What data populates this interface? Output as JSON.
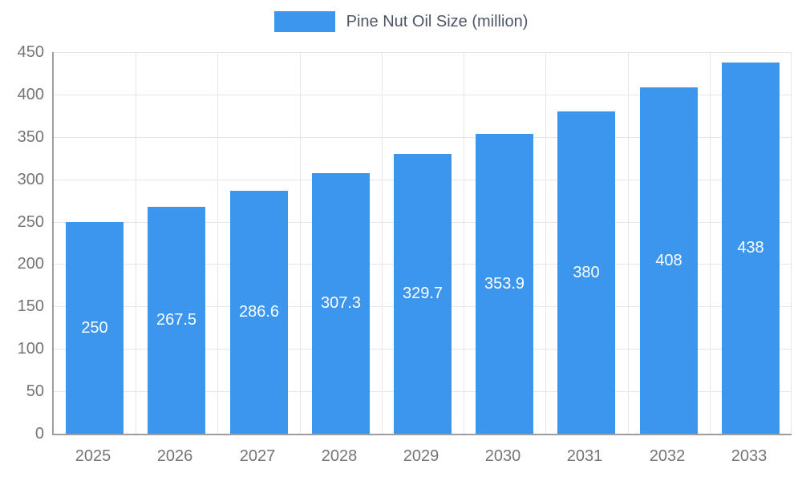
{
  "chart_data": {
    "type": "bar",
    "title": "",
    "legend": {
      "label": "Pine Nut Oil Size (million)",
      "position": "top"
    },
    "categories": [
      "2025",
      "2026",
      "2027",
      "2028",
      "2029",
      "2030",
      "2031",
      "2032",
      "2033"
    ],
    "series": [
      {
        "name": "Pine Nut Oil Size (million)",
        "values": [
          250,
          267.5,
          286.6,
          307.3,
          329.7,
          353.9,
          380,
          408,
          438
        ]
      }
    ],
    "value_labels": [
      "250",
      "267.5",
      "286.6",
      "307.3",
      "329.7",
      "353.9",
      "380",
      "408",
      "438"
    ],
    "xlabel": "",
    "ylabel": "",
    "ylim": [
      0,
      450
    ],
    "ytick_step": 50,
    "grid": true,
    "colors": {
      "bar": "#3d96ee",
      "value_label": "#ffffff",
      "axis_text": "#757575",
      "legend_text": "#4d5663",
      "gridline": "#e6e6e6",
      "axis_line": "#9e9e9e"
    }
  }
}
